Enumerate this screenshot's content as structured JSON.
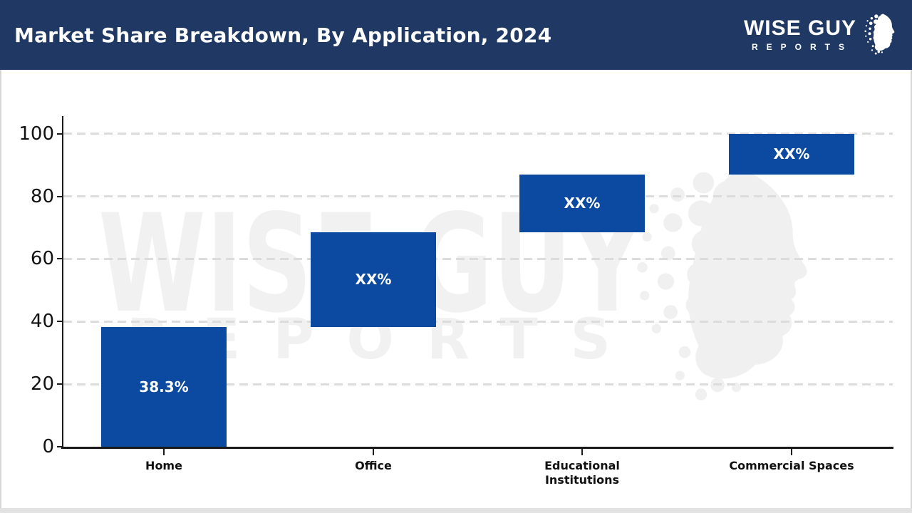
{
  "header": {
    "title": "Market Share Breakdown, By Application, 2024",
    "logo": {
      "name": "WISE GUY",
      "sub": "REPORTS"
    }
  },
  "watermark": {
    "name": "WISE GUY",
    "sub": "REPORTS"
  },
  "chart_data": {
    "type": "bar",
    "subtype": "floating-waterfall",
    "title": "Market Share Breakdown, By Application, 2024",
    "categories": [
      "Home",
      "Office",
      "Educational Institutions",
      "Commercial Spaces"
    ],
    "bars": [
      {
        "category": "Home",
        "start": 0,
        "end": 38.3,
        "label": "38.3%"
      },
      {
        "category": "Office",
        "start": 38.3,
        "end": 68.5,
        "label": "XX%"
      },
      {
        "category": "Educational Institutions",
        "start": 68.5,
        "end": 87,
        "label": "XX%"
      },
      {
        "category": "Commercial Spaces",
        "start": 87,
        "end": 100,
        "label": "XX%"
      }
    ],
    "y_ticks": [
      0,
      20,
      40,
      60,
      80,
      100
    ],
    "ylim": [
      0,
      105.6
    ],
    "xlabel": "",
    "ylabel": "",
    "grid": "horizontal-dashed",
    "legend": null,
    "bar_color": "#0C49A0",
    "bar_label_color": "#FFFFFF"
  },
  "colors": {
    "header_bg": "#1F3864",
    "page_bg": "#FFFFFF",
    "axis": "#1A1A1A",
    "grid": "#DCDCDC",
    "watermark": "#F1F1F1",
    "footer_strip": "#E2E2E2"
  }
}
